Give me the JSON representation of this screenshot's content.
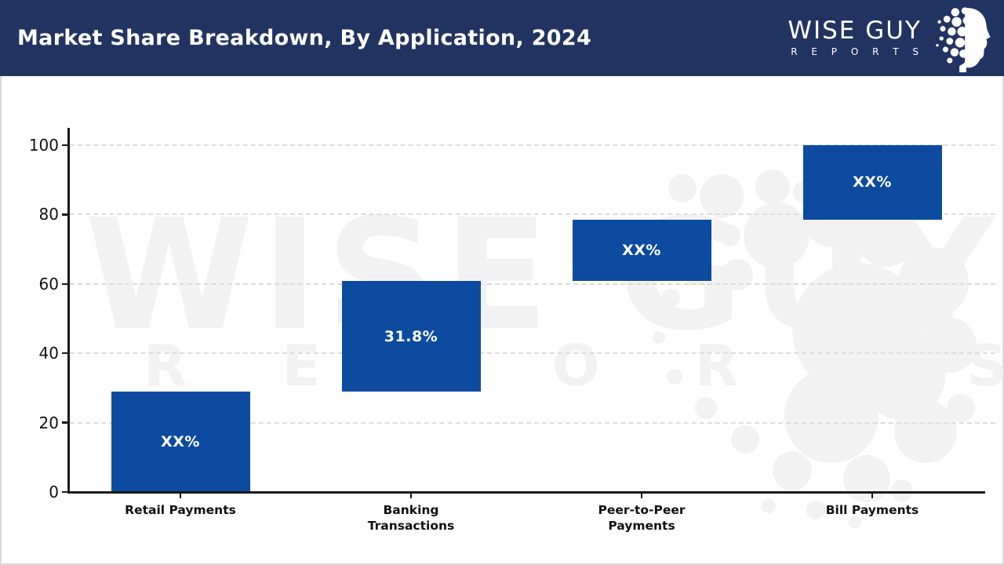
{
  "header": {
    "title": "Market Share Breakdown, By Application, 2024",
    "logo": {
      "brand_line1": "WISE GUY",
      "brand_line2": "R E P O R T S"
    }
  },
  "watermark": {
    "line1": "WISE GUY",
    "line2": "R E P O R T S"
  },
  "chart_data": {
    "type": "bar",
    "subtype": "waterfall-floating-bars",
    "title": "Market Share Breakdown, By Application, 2024",
    "categories": [
      "Retail Payments",
      "Banking Transactions",
      "Peer-to-Peer Payments",
      "Bill Payments"
    ],
    "category_label_lines": [
      [
        "Retail Payments"
      ],
      [
        "Banking",
        "Transactions"
      ],
      [
        "Peer-to-Peer",
        "Payments"
      ],
      [
        "Bill Payments"
      ]
    ],
    "segments": [
      {
        "category": "Retail Payments",
        "start": 0,
        "end": 29,
        "value": 29,
        "label": "XX%"
      },
      {
        "category": "Banking Transactions",
        "start": 29,
        "end": 60.8,
        "value": 31.8,
        "label": "31.8%"
      },
      {
        "category": "Peer-to-Peer Payments",
        "start": 60.8,
        "end": 78.6,
        "value": 17.8,
        "label": "XX%"
      },
      {
        "category": "Bill Payments",
        "start": 78.6,
        "end": 100,
        "value": 21.4,
        "label": "XX%"
      }
    ],
    "yticks": [
      0,
      20,
      40,
      60,
      80,
      100
    ],
    "ylim": [
      0,
      105
    ],
    "xlabel": "",
    "ylabel": "",
    "grid": "horizontal-dashed",
    "legend": "none",
    "bar_color": "#0d4ba1"
  },
  "colors": {
    "header_bg": "#213461",
    "bar": "#0d4ba1",
    "grid": "#dcdcdc",
    "axis": "#1a1a1a",
    "title_text": "#ffffff",
    "watermark": "#f2f2f2",
    "page_border": "#d9d9d9"
  }
}
